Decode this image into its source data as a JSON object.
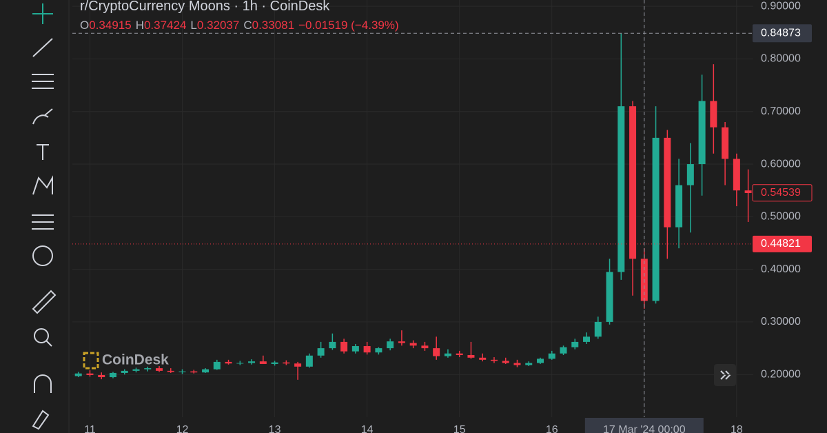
{
  "chart_data": {
    "type": "candlestick",
    "title": "r/CryptoCurrency Moons · 1h · CoinDesk",
    "watermark": "CoinDesk",
    "ohlc_legend": {
      "o_key": "O",
      "o": 0.34915,
      "h_key": "H",
      "h": 0.37424,
      "l_key": "L",
      "l": 0.32037,
      "c_key": "C",
      "c": 0.33081,
      "change": "−0.01519 (−4.39%)"
    },
    "up_color": "#22ab94",
    "down_color": "#f23645",
    "x": [
      10.875,
      11,
      11.125,
      11.25,
      11.375,
      11.5,
      11.625,
      11.75,
      11.875,
      12,
      12.125,
      12.25,
      12.375,
      12.5,
      12.625,
      12.75,
      12.875,
      13,
      13.125,
      13.25,
      13.375,
      13.5,
      13.625,
      13.75,
      13.875,
      14,
      14.125,
      14.25,
      14.375,
      14.5,
      14.625,
      14.75,
      14.875,
      15,
      15.125,
      15.25,
      15.375,
      15.5,
      15.625,
      15.75,
      15.875,
      16,
      16.125,
      16.25,
      16.375,
      16.5,
      16.625,
      16.75,
      16.875,
      17,
      17.125,
      17.25,
      17.375,
      17.5,
      17.625,
      17.75,
      17.875,
      18,
      18.125
    ],
    "open": [
      0.197,
      0.202,
      0.199,
      0.195,
      0.203,
      0.207,
      0.21,
      0.212,
      0.207,
      0.205,
      0.206,
      0.204,
      0.21,
      0.224,
      0.221,
      0.222,
      0.225,
      0.22,
      0.223,
      0.221,
      0.215,
      0.236,
      0.25,
      0.262,
      0.244,
      0.254,
      0.242,
      0.25,
      0.263,
      0.26,
      0.255,
      0.25,
      0.235,
      0.24,
      0.237,
      0.232,
      0.228,
      0.226,
      0.222,
      0.218,
      0.222,
      0.23,
      0.24,
      0.252,
      0.262,
      0.272,
      0.3,
      0.395,
      0.71,
      0.42,
      0.34,
      0.65,
      0.48,
      0.56,
      0.6,
      0.72,
      0.67,
      0.61,
      0.55
    ],
    "high": [
      0.205,
      0.208,
      0.204,
      0.205,
      0.21,
      0.213,
      0.215,
      0.216,
      0.212,
      0.21,
      0.209,
      0.212,
      0.228,
      0.228,
      0.226,
      0.229,
      0.236,
      0.226,
      0.227,
      0.224,
      0.24,
      0.262,
      0.278,
      0.268,
      0.258,
      0.262,
      0.252,
      0.268,
      0.284,
      0.265,
      0.262,
      0.272,
      0.248,
      0.245,
      0.262,
      0.24,
      0.233,
      0.232,
      0.228,
      0.225,
      0.232,
      0.245,
      0.255,
      0.268,
      0.28,
      0.31,
      0.42,
      0.849,
      0.72,
      0.44,
      0.71,
      0.665,
      0.61,
      0.64,
      0.77,
      0.79,
      0.68,
      0.62,
      0.59
    ],
    "low": [
      0.195,
      0.196,
      0.191,
      0.193,
      0.2,
      0.204,
      0.206,
      0.205,
      0.203,
      0.201,
      0.202,
      0.203,
      0.209,
      0.219,
      0.218,
      0.219,
      0.221,
      0.217,
      0.218,
      0.19,
      0.213,
      0.232,
      0.247,
      0.24,
      0.24,
      0.238,
      0.238,
      0.246,
      0.255,
      0.25,
      0.245,
      0.228,
      0.232,
      0.233,
      0.23,
      0.225,
      0.222,
      0.22,
      0.214,
      0.216,
      0.22,
      0.228,
      0.237,
      0.248,
      0.258,
      0.268,
      0.295,
      0.38,
      0.35,
      0.325,
      0.335,
      0.42,
      0.44,
      0.47,
      0.54,
      0.62,
      0.56,
      0.52,
      0.49
    ],
    "close": [
      0.202,
      0.199,
      0.195,
      0.203,
      0.207,
      0.21,
      0.212,
      0.207,
      0.205,
      0.206,
      0.204,
      0.21,
      0.224,
      0.221,
      0.222,
      0.225,
      0.22,
      0.223,
      0.221,
      0.215,
      0.236,
      0.25,
      0.262,
      0.244,
      0.254,
      0.242,
      0.25,
      0.263,
      0.26,
      0.255,
      0.25,
      0.235,
      0.24,
      0.237,
      0.232,
      0.228,
      0.226,
      0.222,
      0.218,
      0.222,
      0.23,
      0.24,
      0.252,
      0.262,
      0.272,
      0.3,
      0.395,
      0.71,
      0.42,
      0.34,
      0.65,
      0.48,
      0.56,
      0.6,
      0.72,
      0.67,
      0.61,
      0.55,
      0.545
    ],
    "xlim": [
      10.81,
      18.18
    ],
    "ylim": [
      0.119,
      0.912
    ],
    "xticks": [
      11,
      12,
      13,
      14,
      15,
      16,
      {
        "value": 17,
        "label": "17 Mar '24   00:00"
      },
      18
    ],
    "yticks": [
      {
        "value": 0.2,
        "label": "0.20000"
      },
      {
        "value": 0.3,
        "label": "0.30000"
      },
      {
        "value": 0.4,
        "label": "0.40000"
      },
      {
        "value": 0.5,
        "label": "0.50000"
      },
      {
        "value": 0.6,
        "label": "0.60000"
      },
      {
        "value": 0.7,
        "label": "0.70000"
      },
      {
        "value": 0.8,
        "label": "0.80000"
      },
      {
        "value": 0.9,
        "label": "0.90000"
      }
    ],
    "crosshair": {
      "x": 17,
      "y": 0.84873
    },
    "last_price": 0.54539,
    "alert_price": 0.44821,
    "grid": true
  }
}
